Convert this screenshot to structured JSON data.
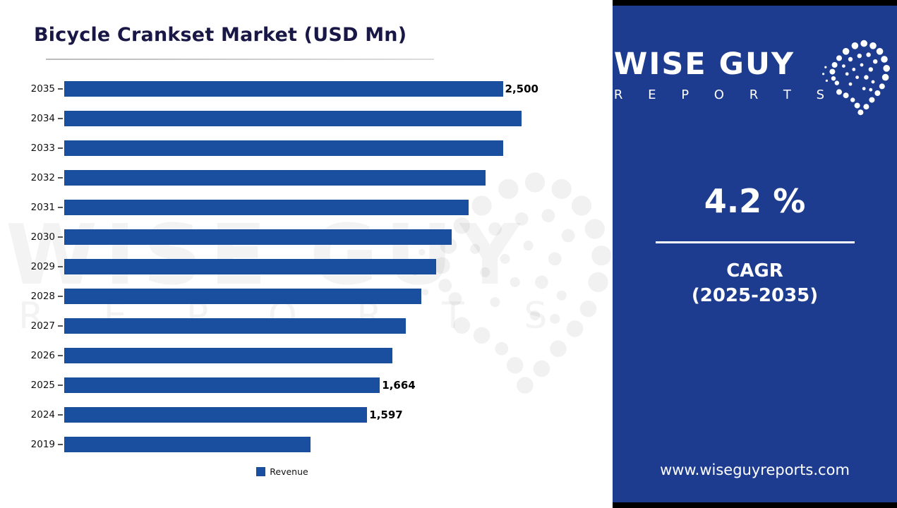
{
  "chart_data": {
    "type": "bar",
    "orientation": "horizontal",
    "title": "Bicycle Crankset Market (USD Mn)",
    "categories": [
      "2035",
      "2034",
      "2033",
      "2032",
      "2031",
      "2030",
      "2029",
      "2028",
      "2027",
      "2026",
      "2025",
      "2024",
      "2019"
    ],
    "values": [
      2500,
      2410,
      2313,
      2220,
      2130,
      2044,
      1962,
      1881,
      1802,
      1731,
      1664,
      1597,
      1300
    ],
    "value_labels": [
      "2,500",
      "",
      "",
      "",
      "",
      "",
      "",
      "",
      "",
      "",
      "1,664",
      "1,597",
      ""
    ],
    "xlim": [
      0,
      2500
    ],
    "grid": false,
    "bar_color": "#1a4e9e",
    "legend_position": "bottom-center",
    "legend": [
      {
        "label": "Revenue",
        "color": "#1a4e9e"
      }
    ]
  },
  "watermark": {
    "line1": "WISE GUY",
    "line2": "R E P O R T S"
  },
  "brand": {
    "logo_line1": "WISE GUY",
    "logo_line2": "R E P O R T S",
    "cagr_value": "4.2 %",
    "cagr_label1": "CAGR",
    "cagr_label2": "(2025-2035)",
    "website": "www.wiseguyreports.com",
    "panel_color": "#1d3c8f"
  }
}
